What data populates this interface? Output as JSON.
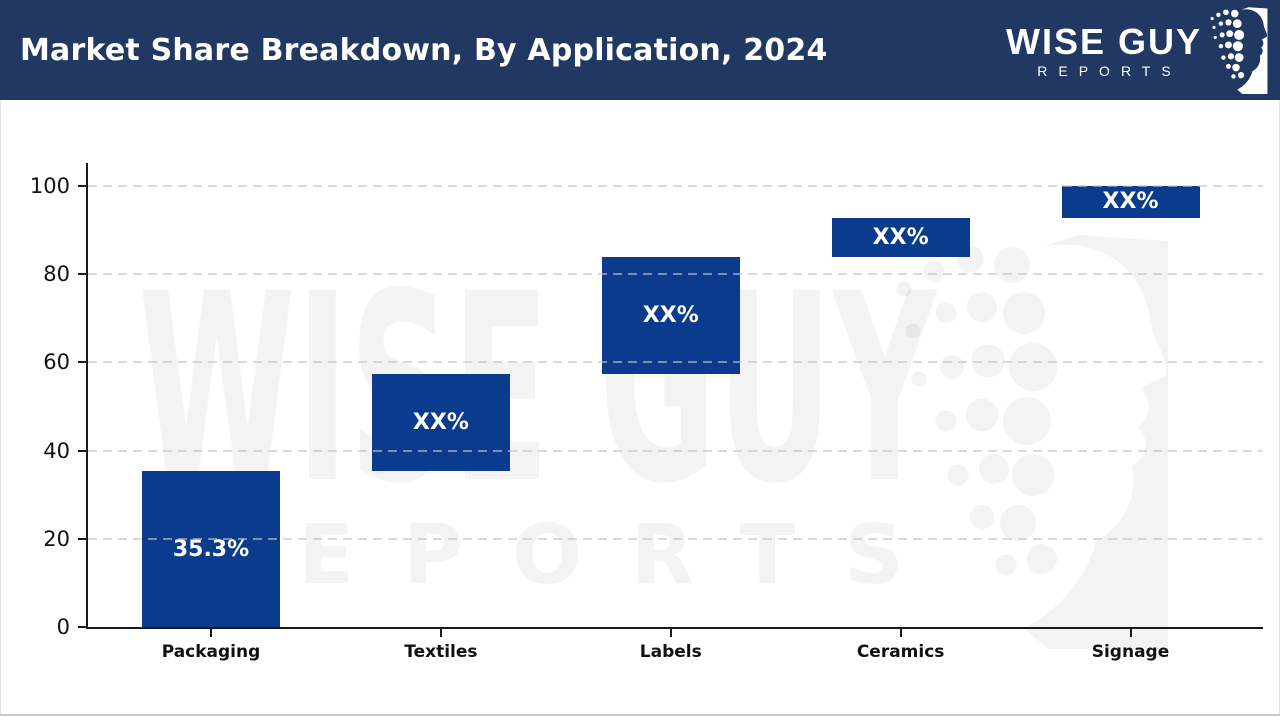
{
  "header": {
    "title": "Market Share Breakdown, By Application, 2024",
    "background_color": "#203862",
    "logo": {
      "line1": "WISE GUY",
      "line2": "REPORTS",
      "head_icon": "dotted-head-profile-icon"
    }
  },
  "watermark": {
    "line1": "WISE GUY",
    "line2": "REPORTS",
    "head_icon": "dotted-head-profile-icon"
  },
  "chart_data": {
    "type": "bar",
    "subtype": "waterfall",
    "title": "Market Share Breakdown, By Application, 2024",
    "categories": [
      "Packaging",
      "Textiles",
      "Labels",
      "Ceramics",
      "Signage"
    ],
    "segments": [
      {
        "category": "Packaging",
        "value": 35.3,
        "start": 0,
        "end": 35.3,
        "label": "35.3%"
      },
      {
        "category": "Textiles",
        "value": 22.1,
        "start": 35.3,
        "end": 57.4,
        "label": "XX%"
      },
      {
        "category": "Labels",
        "value": 26.5,
        "start": 57.4,
        "end": 83.9,
        "label": "XX%"
      },
      {
        "category": "Ceramics",
        "value": 8.9,
        "start": 83.9,
        "end": 92.8,
        "label": "XX%"
      },
      {
        "category": "Signage",
        "value": 7.2,
        "start": 92.8,
        "end": 100.0,
        "label": "XX%"
      }
    ],
    "xlabel": "",
    "ylabel": "",
    "ylim": [
      0,
      100
    ],
    "yticks": [
      0,
      20,
      40,
      60,
      80,
      100
    ],
    "grid": "horizontal-dashed",
    "legend": "none",
    "bar_color": "#0b3b8c",
    "bar_label_color": "#ffffff",
    "axis_color": "#1a1a1a"
  }
}
